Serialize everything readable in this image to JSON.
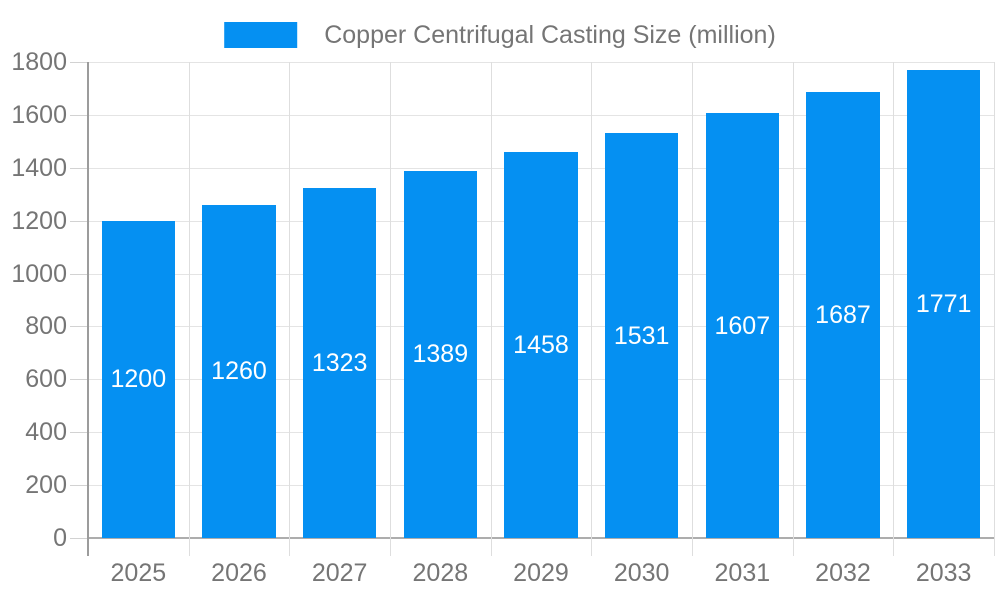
{
  "legend": {
    "label": "Copper Centrifugal Casting Size (million)"
  },
  "chart_data": {
    "type": "bar",
    "title": "Copper Centrifugal Casting Size (million)",
    "series_name": "Copper Centrifugal Casting Size (million)",
    "categories": [
      "2025",
      "2026",
      "2027",
      "2028",
      "2029",
      "2030",
      "2031",
      "2032",
      "2033"
    ],
    "values": [
      1200,
      1260,
      1323,
      1389,
      1458,
      1531,
      1607,
      1687,
      1771
    ],
    "bar_value_labels": [
      "1200",
      "1260",
      "1323",
      "1389",
      "1458",
      "1531",
      "1607",
      "1687",
      "1771"
    ],
    "xlabel": "",
    "ylabel": "",
    "ylim": [
      0,
      1800
    ],
    "ytick_step": 200,
    "ytick_labels": [
      "0",
      "200",
      "400",
      "600",
      "800",
      "1000",
      "1200",
      "1400",
      "1600",
      "1800"
    ],
    "grid": true,
    "legend_position": "top-center",
    "bar_label_position": "inside-center",
    "colors": {
      "bar": "#0590F2",
      "bar_label": "#FFFFFF",
      "axis_text": "#757575",
      "grid": "#E4E4E4",
      "boundary": "#DEDEDE",
      "tick": "#D2D2D2",
      "baseline": "#ADADAD",
      "axis_line": "#9C9C9C",
      "background": "#FFFFFF"
    }
  }
}
